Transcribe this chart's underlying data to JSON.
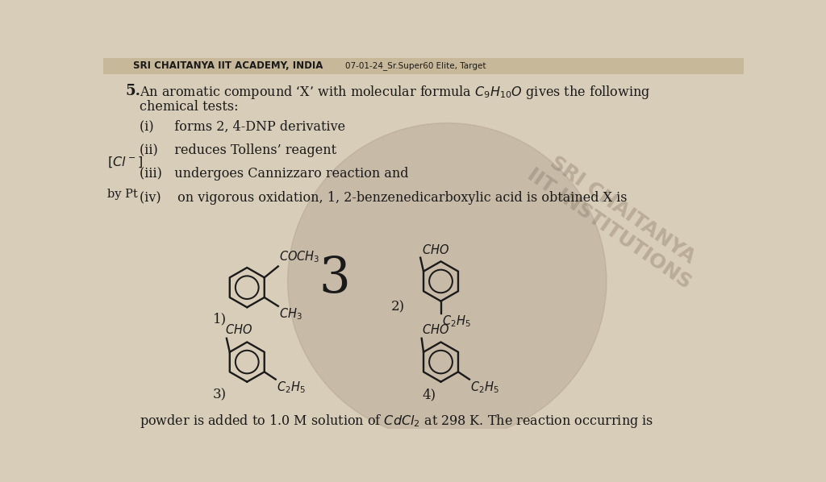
{
  "page_background": "#d8cdb8",
  "header_bg": "#c8b89a",
  "text_color": "#1a1a1a",
  "header_text": "SRI CHAITANYA IIT ACADEMY, INDIA",
  "header_date": "07-01-24_Sr.Super60 Elite, Target",
  "q5_line1": "An aromatic compound ‘X’ with molecular formula $C_9H_{10}O$ gives the following",
  "q5_line2": "chemical tests:",
  "item1": "(i)     forms 2, 4-DNP derivative",
  "item2": "(ii)    reduces Tollens’ reagent",
  "item3": "(iii)   undergoes Cannizzaro reaction and",
  "item4": "(iv)    on vigorous oxidation, 1, 2-benzenedicarboxylic acid is obtained X is",
  "bottom_text": "powder is added to 1.0 M solution of $CdCl_2$ at 298 K. The reaction occurring is",
  "left_cl": "$[Cl^-]$",
  "left_pt": "by Pt",
  "num3_label": "3",
  "struct1_label": "1)",
  "struct2_label": "2)",
  "struct3_label": "3)",
  "struct4_label": "4)",
  "circle_color": "#a09080",
  "circle_alpha": 0.3,
  "watermark": "SRI CHAITANYA\nIIT INSTITUTIONS",
  "watermark_color": "#807060",
  "watermark_alpha": 0.35
}
